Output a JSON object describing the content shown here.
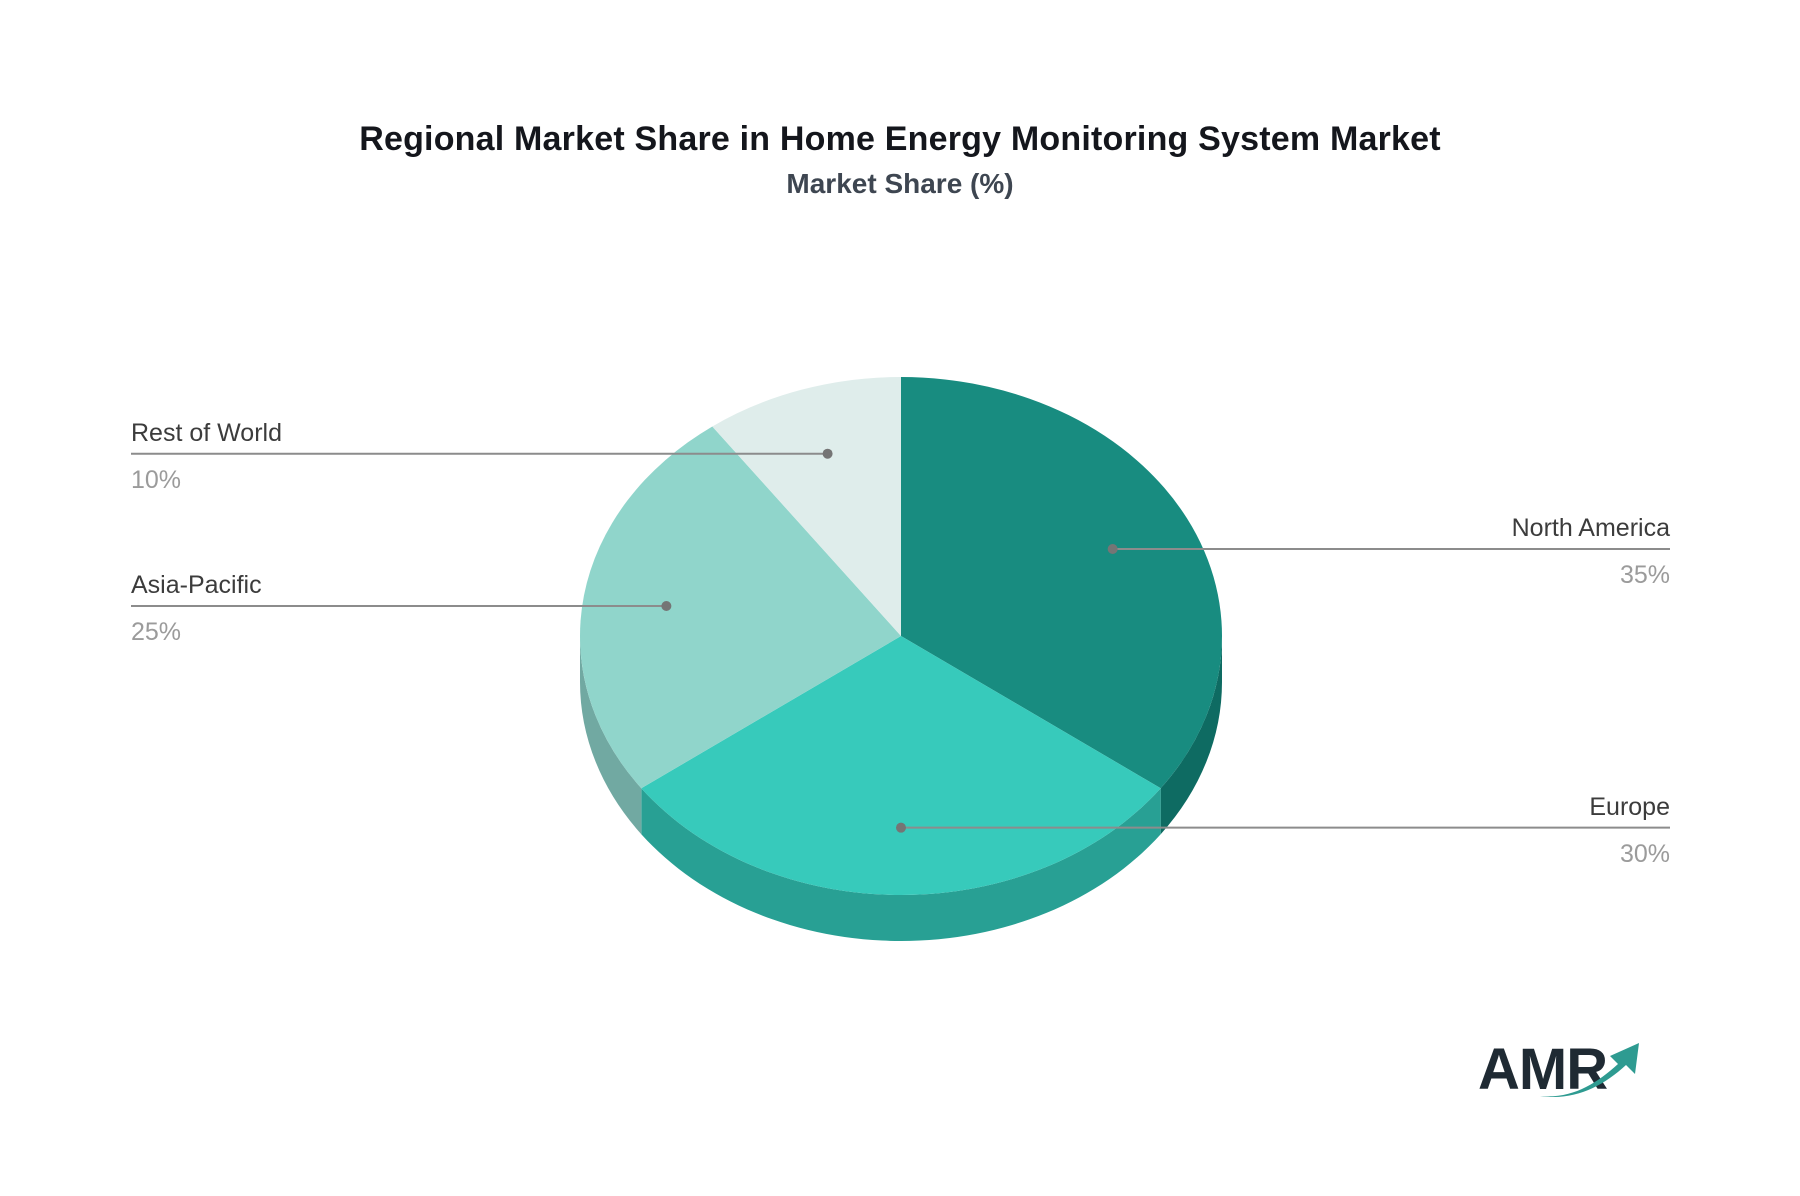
{
  "header": {
    "title": "Regional Market Share in Home Energy Monitoring System Market",
    "subtitle": "Market Share (%)"
  },
  "chart_data": {
    "type": "pie",
    "title": "Regional Market Share in Home Energy Monitoring System Market",
    "subtitle": "Market Share (%)",
    "unit": "%",
    "style": "3d",
    "start_angle": "12 o'clock",
    "direction": "clockwise",
    "slices": [
      {
        "name": "North America",
        "value": 35,
        "label": "35%",
        "color": "#188C80",
        "side_color": "#0E6B62"
      },
      {
        "name": "Europe",
        "value": 30,
        "label": "30%",
        "color": "#37CABB",
        "side_color": "#28A094"
      },
      {
        "name": "Asia-Pacific",
        "value": 25,
        "label": "25%",
        "color": "#90D5CB",
        "side_color": "#71A9A2"
      },
      {
        "name": "Rest of World",
        "value": 10,
        "label": "10%",
        "color": "#DFEDEB",
        "side_color": "#C5DDD9"
      }
    ],
    "label_line_color": "#8c8c8c",
    "label_dot_color": "#757575",
    "label_name_color": "#3c3c3c",
    "label_pct_color": "#9b9b9b",
    "legend": "none"
  },
  "logo": {
    "text": "AMR",
    "text_color": "#1f2a33",
    "arrow_color": "#2E9B91"
  }
}
